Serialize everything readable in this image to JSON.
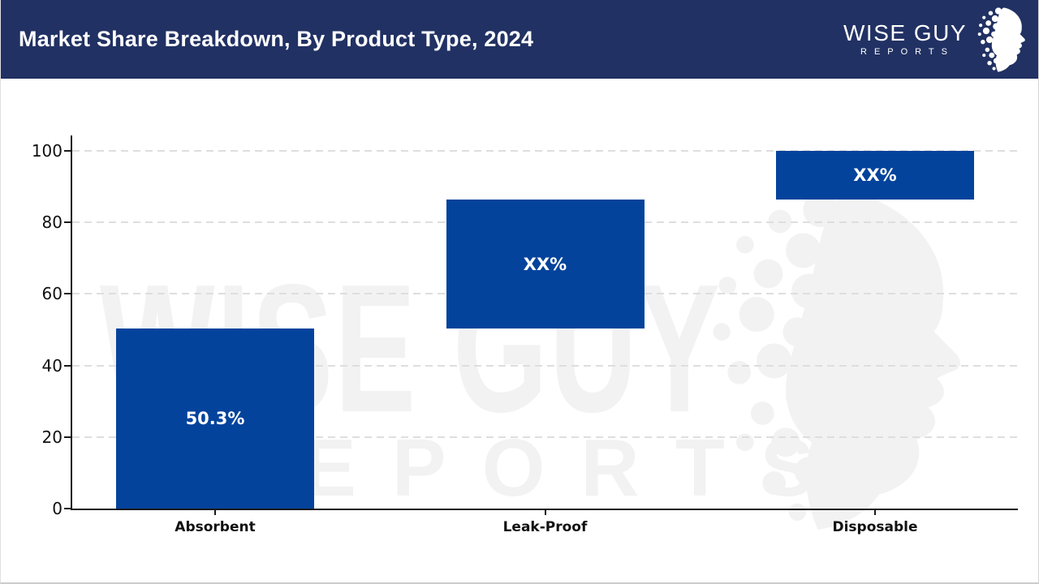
{
  "page": {
    "background": "#ffffff"
  },
  "header": {
    "title": "Market Share Breakdown, By Product Type, 2024",
    "background_color": "#213163",
    "title_color": "#ffffff",
    "logo": {
      "line1": "WISE GUY",
      "line2": "REPORTS"
    }
  },
  "watermark": {
    "line1": "WISE GUY",
    "line2": "REPORTS"
  },
  "chart_data": {
    "type": "bar",
    "subtype": "stacked-segment-columns",
    "title": "Market Share Breakdown, By Product Type, 2024",
    "categories": [
      "Absorbent",
      "Leak-Proof",
      "Disposable"
    ],
    "segments": [
      {
        "category": "Absorbent",
        "start": 0,
        "end": 50.3,
        "label": "50.3%"
      },
      {
        "category": "Leak-Proof",
        "start": 50.3,
        "end": 86.4,
        "label": "XX%"
      },
      {
        "category": "Disposable",
        "start": 86.4,
        "end": 100,
        "label": "XX%"
      }
    ],
    "bar_color": "#04439c",
    "bar_label_color": "#ffffff",
    "yticks": [
      0,
      20,
      40,
      60,
      80,
      100
    ],
    "ylim": [
      0,
      104.2
    ],
    "xlabel": "",
    "ylabel": "",
    "grid": "dashed-horizontal",
    "grid_color": "#dedede",
    "axis_color": "#1a1a1a",
    "legend": "none"
  }
}
